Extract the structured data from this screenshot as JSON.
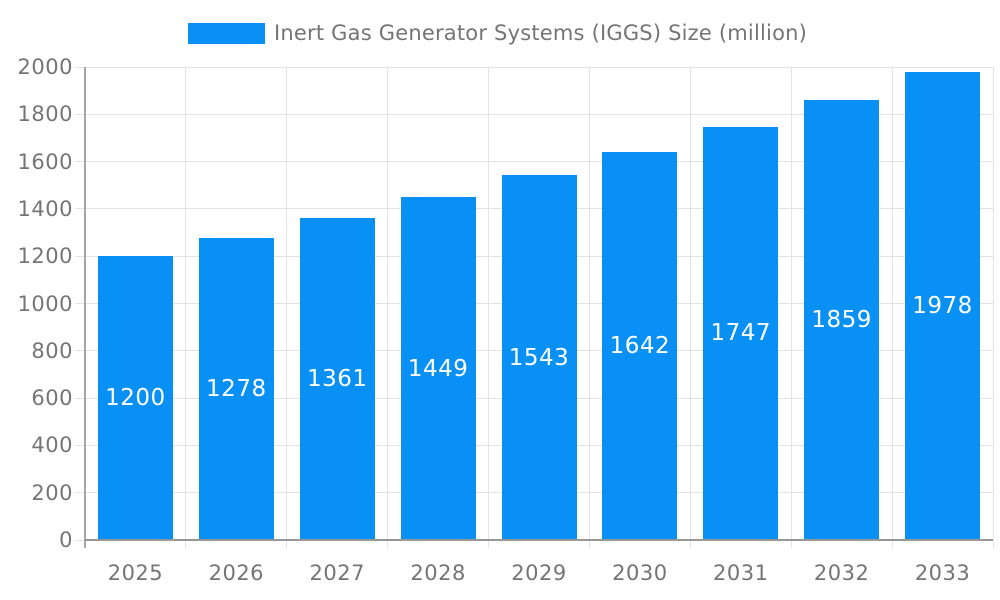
{
  "chart_data": {
    "type": "bar",
    "title": "Inert Gas Generator Systems (IGGS) Size (million)",
    "legend": {
      "position": "top",
      "label": "Inert Gas Generator Systems (IGGS) Size (million)"
    },
    "categories": [
      "2025",
      "2026",
      "2027",
      "2028",
      "2029",
      "2030",
      "2031",
      "2032",
      "2033"
    ],
    "values": [
      1200,
      1278,
      1361,
      1449,
      1543,
      1642,
      1747,
      1859,
      1978
    ],
    "bar_value_labels": [
      "1200",
      "1278",
      "1361",
      "1449",
      "1543",
      "1642",
      "1747",
      "1859",
      "1978"
    ],
    "xlabel": "",
    "ylabel": "",
    "ylim": [
      0,
      2000
    ],
    "yticks": [
      0,
      200,
      400,
      600,
      800,
      1000,
      1200,
      1400,
      1600,
      1800,
      2000
    ],
    "grid": true,
    "colors": {
      "bar": "#0890F5",
      "bar_label": "#FFFFFF",
      "grid": "#E3E3E3",
      "axis": "#979797",
      "axis_soft": "#A6A6A6",
      "tick_text": "#757575"
    }
  }
}
